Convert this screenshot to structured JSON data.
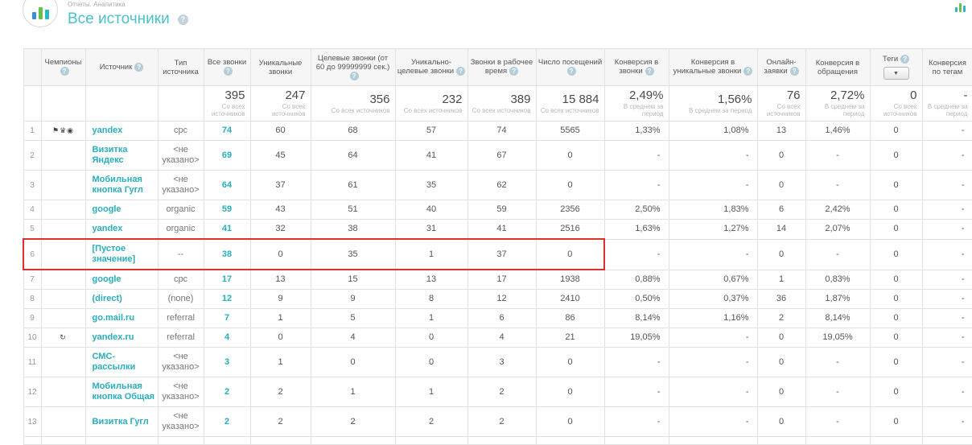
{
  "icons": {
    "help": "?",
    "caret": "▼"
  },
  "colors": {
    "accent_teal": "#29aebc",
    "highlight_red": "#df2f2c",
    "logo_blue": "#3a8fd8",
    "logo_green": "#6abf4b",
    "logo_teal": "#2fb6c3"
  },
  "header": {
    "breadcrumb": "Отчеты. Аналитика",
    "title": "Все источники"
  },
  "table": {
    "columns": [
      {
        "key": "num",
        "label": "",
        "width": 22,
        "help": false
      },
      {
        "key": "champions",
        "label": "Чемпионы",
        "width": 55,
        "help": true
      },
      {
        "key": "source",
        "label": "Источник",
        "width": 90,
        "help": true
      },
      {
        "key": "type",
        "label": "Тип источника",
        "width": 57,
        "help": false
      },
      {
        "key": "calls",
        "label": "Все звонки",
        "width": 58,
        "help": true
      },
      {
        "key": "unique_calls",
        "label": "Уникальные звонки",
        "width": 75,
        "help": false
      },
      {
        "key": "target_calls",
        "label": "Целевые звонки (от 60 до 99999999 сек.)",
        "width": 105,
        "help": true
      },
      {
        "key": "unique_target_calls",
        "label": "Уникально-целевые звонки",
        "width": 90,
        "help": true
      },
      {
        "key": "work_calls",
        "label": "Звонки в рабочее время",
        "width": 85,
        "help": true
      },
      {
        "key": "visits",
        "label": "Число посещений",
        "width": 85,
        "help": true
      },
      {
        "key": "conv_calls",
        "label": "Конверсия в звонки",
        "width": 80,
        "help": true
      },
      {
        "key": "conv_unique",
        "label": "Конверсия в уникальные звонки",
        "width": 110,
        "help": true
      },
      {
        "key": "online",
        "label": "Онлайн-заявки",
        "width": 60,
        "help": true
      },
      {
        "key": "conv_total",
        "label": "Конверсия в обращения",
        "width": 80,
        "help": false
      },
      {
        "key": "tags",
        "label": "Теги",
        "width": 65,
        "help": true,
        "dropdown": true
      },
      {
        "key": "conv_tags",
        "label": "Конверсия по тегам",
        "width": 63,
        "help": false
      }
    ],
    "summary": {
      "calls": {
        "value": "395",
        "caption": "Со всех источников"
      },
      "unique_calls": {
        "value": "247",
        "caption": "Со всех источников"
      },
      "target_calls": {
        "value": "356",
        "caption": "Со всех источников"
      },
      "unique_target_calls": {
        "value": "232",
        "caption": "Со всех источников"
      },
      "work_calls": {
        "value": "389",
        "caption": "Со всех источников"
      },
      "visits": {
        "value": "15 884",
        "caption": "Со всех источников"
      },
      "conv_calls": {
        "value": "2,49%",
        "caption": "В среднем за период"
      },
      "conv_unique": {
        "value": "1,56%",
        "caption": "В среднем за период"
      },
      "online": {
        "value": "76",
        "caption": "Со всех источников"
      },
      "conv_total": {
        "value": "2,72%",
        "caption": "В среднем за период"
      },
      "tags": {
        "value": "0",
        "caption": "Со всех источников"
      },
      "conv_tags": {
        "value": "-",
        "caption": "В среднем за период"
      }
    },
    "rows": [
      {
        "num": "1",
        "champions": "⚑♛◉",
        "source": "yandex",
        "type": "cpc",
        "calls": "74",
        "unique_calls": "60",
        "target_calls": "68",
        "unique_target_calls": "57",
        "work_calls": "74",
        "visits": "5565",
        "conv_calls": "1,33%",
        "conv_unique": "1,08%",
        "online": "13",
        "conv_total": "1,46%",
        "tags": "0",
        "conv_tags": "-"
      },
      {
        "num": "2",
        "champions": "",
        "source": "Визитка Яндекс",
        "type": "<не указано>",
        "calls": "69",
        "unique_calls": "45",
        "target_calls": "64",
        "unique_target_calls": "41",
        "work_calls": "67",
        "visits": "0",
        "conv_calls": "-",
        "conv_unique": "-",
        "online": "0",
        "conv_total": "-",
        "tags": "0",
        "conv_tags": "-"
      },
      {
        "num": "3",
        "champions": "",
        "source": "Мобильная кнопка Гугл",
        "type": "<не указано>",
        "calls": "64",
        "unique_calls": "37",
        "target_calls": "61",
        "unique_target_calls": "35",
        "work_calls": "62",
        "visits": "0",
        "conv_calls": "-",
        "conv_unique": "-",
        "online": "0",
        "conv_total": "-",
        "tags": "0",
        "conv_tags": "-"
      },
      {
        "num": "4",
        "champions": "",
        "source": "google",
        "type": "organic",
        "calls": "59",
        "unique_calls": "43",
        "target_calls": "51",
        "unique_target_calls": "40",
        "work_calls": "59",
        "visits": "2356",
        "conv_calls": "2,50%",
        "conv_unique": "1,83%",
        "online": "6",
        "conv_total": "2,42%",
        "tags": "0",
        "conv_tags": "-"
      },
      {
        "num": "5",
        "champions": "",
        "source": "yandex",
        "type": "organic",
        "calls": "41",
        "unique_calls": "32",
        "target_calls": "38",
        "unique_target_calls": "31",
        "work_calls": "41",
        "visits": "2516",
        "conv_calls": "1,63%",
        "conv_unique": "1,27%",
        "online": "14",
        "conv_total": "2,07%",
        "tags": "0",
        "conv_tags": "-"
      },
      {
        "num": "6",
        "champions": "",
        "source": "[Пустое значение]",
        "type": "--",
        "calls": "38",
        "unique_calls": "0",
        "target_calls": "35",
        "unique_target_calls": "1",
        "work_calls": "37",
        "visits": "0",
        "conv_calls": "-",
        "conv_unique": "-",
        "online": "0",
        "conv_total": "-",
        "tags": "0",
        "conv_tags": "-",
        "highlight": true
      },
      {
        "num": "7",
        "champions": "",
        "source": "google",
        "type": "cpc",
        "calls": "17",
        "unique_calls": "13",
        "target_calls": "15",
        "unique_target_calls": "13",
        "work_calls": "17",
        "visits": "1938",
        "conv_calls": "0,88%",
        "conv_unique": "0,67%",
        "online": "1",
        "conv_total": "0,83%",
        "tags": "0",
        "conv_tags": "-"
      },
      {
        "num": "8",
        "champions": "",
        "source": "(direct)",
        "type": "(none)",
        "calls": "12",
        "unique_calls": "9",
        "target_calls": "9",
        "unique_target_calls": "8",
        "work_calls": "12",
        "visits": "2410",
        "conv_calls": "0,50%",
        "conv_unique": "0,37%",
        "online": "36",
        "conv_total": "1,87%",
        "tags": "0",
        "conv_tags": "-"
      },
      {
        "num": "9",
        "champions": "",
        "source": "go.mail.ru",
        "type": "referral",
        "calls": "7",
        "unique_calls": "1",
        "target_calls": "5",
        "unique_target_calls": "1",
        "work_calls": "6",
        "visits": "86",
        "conv_calls": "8,14%",
        "conv_unique": "1,16%",
        "online": "2",
        "conv_total": "8,14%",
        "tags": "0",
        "conv_tags": "-"
      },
      {
        "num": "10",
        "champions": "↻",
        "source": "yandex.ru",
        "type": "referral",
        "calls": "4",
        "unique_calls": "0",
        "target_calls": "4",
        "unique_target_calls": "0",
        "work_calls": "4",
        "visits": "21",
        "conv_calls": "19,05%",
        "conv_unique": "-",
        "online": "0",
        "conv_total": "19,05%",
        "tags": "0",
        "conv_tags": "-"
      },
      {
        "num": "11",
        "champions": "",
        "source": "СМС-рассылки",
        "type": "<не указано>",
        "calls": "3",
        "unique_calls": "1",
        "target_calls": "0",
        "unique_target_calls": "0",
        "work_calls": "3",
        "visits": "0",
        "conv_calls": "-",
        "conv_unique": "-",
        "online": "0",
        "conv_total": "-",
        "tags": "0",
        "conv_tags": "-"
      },
      {
        "num": "12",
        "champions": "",
        "source": "Мобильная кнопка Общая",
        "type": "<не указано>",
        "calls": "2",
        "unique_calls": "2",
        "target_calls": "1",
        "unique_target_calls": "1",
        "work_calls": "2",
        "visits": "0",
        "conv_calls": "-",
        "conv_unique": "-",
        "online": "0",
        "conv_total": "-",
        "tags": "0",
        "conv_tags": "-"
      },
      {
        "num": "13",
        "champions": "",
        "source": "Визитка Гугл",
        "type": "<не указано>",
        "calls": "2",
        "unique_calls": "2",
        "target_calls": "2",
        "unique_target_calls": "2",
        "work_calls": "2",
        "visits": "0",
        "conv_calls": "-",
        "conv_unique": "-",
        "online": "0",
        "conv_total": "-",
        "tags": "0",
        "conv_tags": "-"
      }
    ]
  }
}
